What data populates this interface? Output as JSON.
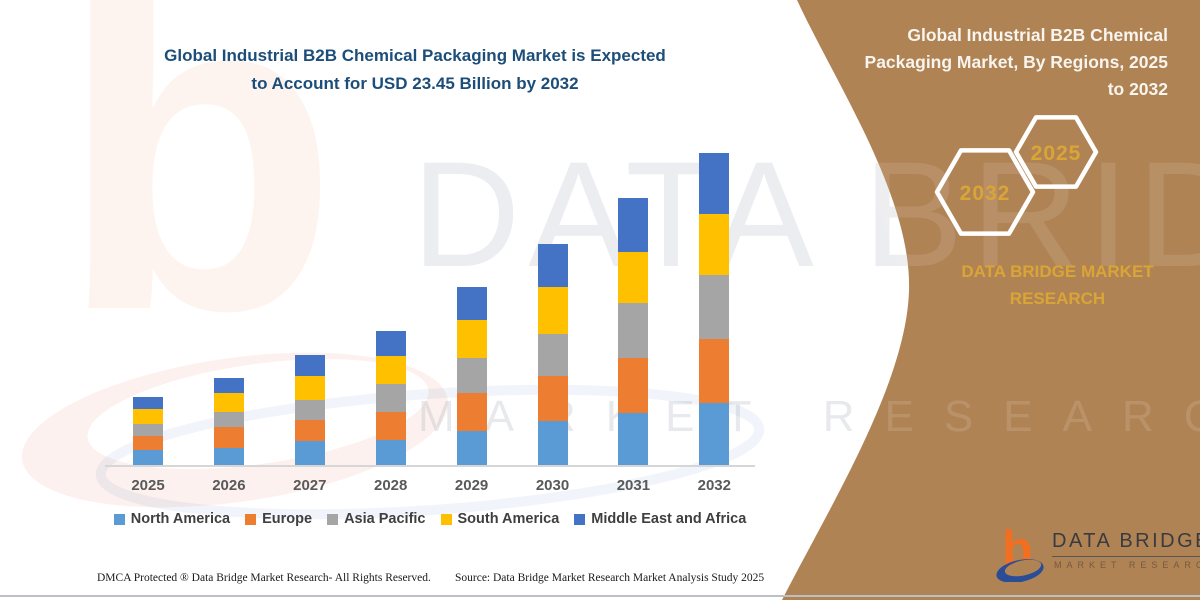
{
  "header": {
    "left_title_line1": "Global Industrial B2B Chemical Packaging Market is Expected",
    "left_title_line2": "to Account for USD 23.45 Billion by 2032",
    "right_title": "Global Industrial B2B Chemical Packaging Market, By Regions, 2025 to 2032"
  },
  "badges": {
    "start_year": "2025",
    "end_year": "2032"
  },
  "brand": {
    "caps_line1": "DATA BRIDGE MARKET",
    "caps_line2": "RESEARCH",
    "logo_text": "DATA BRIDGE",
    "logo_subtext": "MARKET RESEARCH",
    "logo_letter": "b"
  },
  "watermark": {
    "line1": "DATA BRIDGE",
    "line2": "MARKET RESEARCH"
  },
  "footer": {
    "left": "DMCA Protected ® Data Bridge Market Research- All Rights Reserved.",
    "source": "Source: Data Bridge Market Research Market Analysis Study 2025"
  },
  "colors": {
    "title_blue": "#1d4e79",
    "brown_panel": "#b08355",
    "gold_accent": "#d9a537",
    "axis_label_gray": "#595959",
    "baseline_gray": "#d6d6d6"
  },
  "chart_data": {
    "type": "bar",
    "stacked": true,
    "title": "Global Industrial B2B Chemical Packaging Market, By Regions, 2025 to 2032",
    "unit": "USD Billion",
    "categories": [
      "2025",
      "2026",
      "2027",
      "2028",
      "2029",
      "2030",
      "2031",
      "2032"
    ],
    "series": [
      {
        "name": "North America",
        "color": "#5B9BD5",
        "values": [
          1.1,
          1.3,
          1.8,
          1.9,
          2.6,
          3.3,
          3.9,
          4.7
        ]
      },
      {
        "name": "Europe",
        "color": "#ED7D31",
        "values": [
          1.1,
          1.6,
          1.6,
          2.1,
          2.8,
          3.4,
          4.2,
          4.8
        ]
      },
      {
        "name": "Asia Pacific",
        "color": "#A5A5A5",
        "values": [
          0.9,
          1.1,
          1.5,
          2.1,
          2.7,
          3.2,
          4.1,
          4.8
        ]
      },
      {
        "name": "South America",
        "color": "#FFC000",
        "values": [
          1.1,
          1.4,
          1.8,
          2.1,
          2.8,
          3.5,
          3.9,
          4.6
        ]
      },
      {
        "name": "Middle East and Africa",
        "color": "#4472C4",
        "values": [
          0.9,
          1.2,
          1.6,
          1.9,
          2.5,
          3.3,
          4.0,
          4.6
        ]
      }
    ],
    "totals": [
      5.1,
      6.6,
      8.3,
      10.1,
      13.4,
      16.7,
      20.1,
      23.5
    ],
    "ylim": [
      0,
      25
    ],
    "grid": false,
    "y_axis_visible": false,
    "legend_position": "bottom",
    "annotation": "2032 total = USD 23.45 Billion"
  }
}
